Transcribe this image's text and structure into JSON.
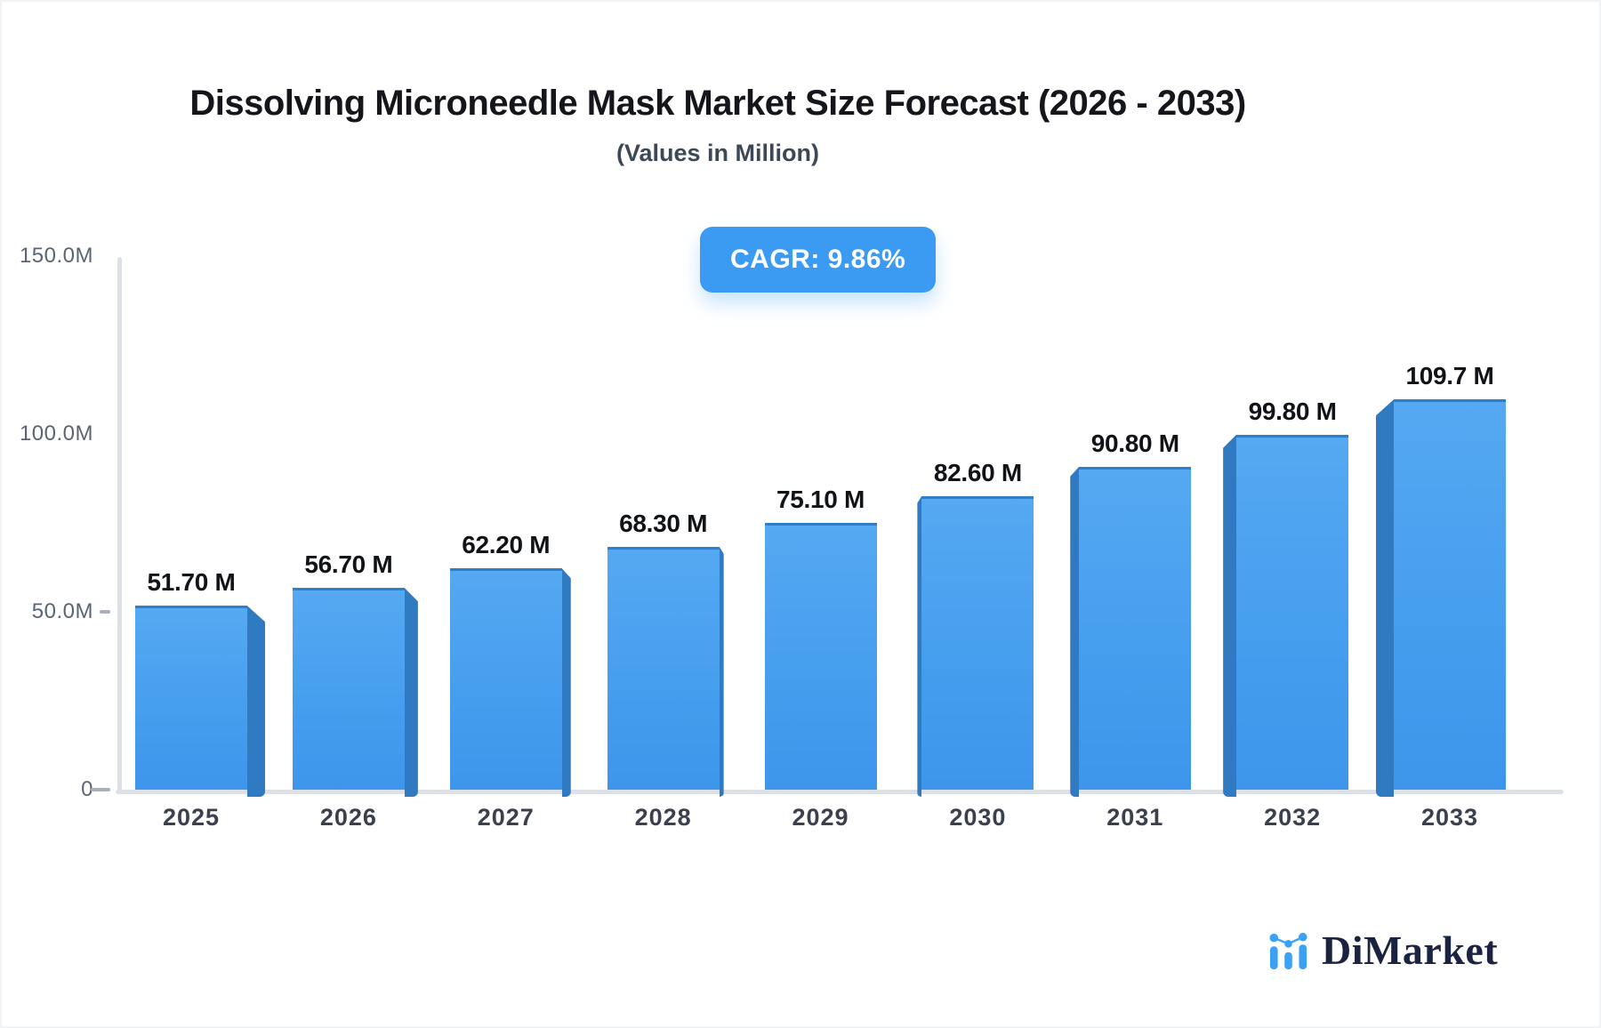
{
  "header": {
    "title": "Dissolving Microneedle Mask Market Size Forecast (2026 - 2033)",
    "subtitle": "(Values in Million)"
  },
  "badge": {
    "label": "CAGR: 9.86%"
  },
  "brand": {
    "name": "DiMarket",
    "icon": "bar-chart-trend-logo-icon"
  },
  "colors": {
    "badge_bg": "#3b9bf2",
    "bar_face_top": "#55a9f2",
    "bar_face_bottom": "#3e96ec",
    "bar_side": "#2f7ac0",
    "axis_line": "#dde1e7",
    "logo_blue": "#3ba1f6",
    "logo_navy": "#1a2340"
  },
  "chart_data": {
    "type": "bar",
    "title": "Dissolving Microneedle Mask Market Size Forecast (2026 - 2033)",
    "subtitle": "(Values in Million)",
    "unit": "Million",
    "categories": [
      "2025",
      "2026",
      "2027",
      "2028",
      "2029",
      "2030",
      "2031",
      "2032",
      "2033"
    ],
    "values": [
      51.7,
      56.7,
      62.2,
      68.3,
      75.1,
      82.6,
      90.8,
      99.8,
      109.7
    ],
    "value_labels": [
      "51.70 M",
      "56.70 M",
      "62.20 M",
      "68.30 M",
      "75.10 M",
      "82.60 M",
      "90.80 M",
      "99.80 M",
      "109.7 M"
    ],
    "xlabel": "",
    "ylabel": "",
    "ylim": [
      0,
      150
    ],
    "y_ticks": [
      {
        "label": "150.0M",
        "value": 150,
        "dash": false
      },
      {
        "label": "100.0M",
        "value": 100,
        "dash": false
      },
      {
        "label": "50.0M",
        "value": 50,
        "dash": true
      },
      {
        "label": "0",
        "value": 0,
        "dash": true
      }
    ],
    "grid": false,
    "legend": "none",
    "style_3d": true
  }
}
